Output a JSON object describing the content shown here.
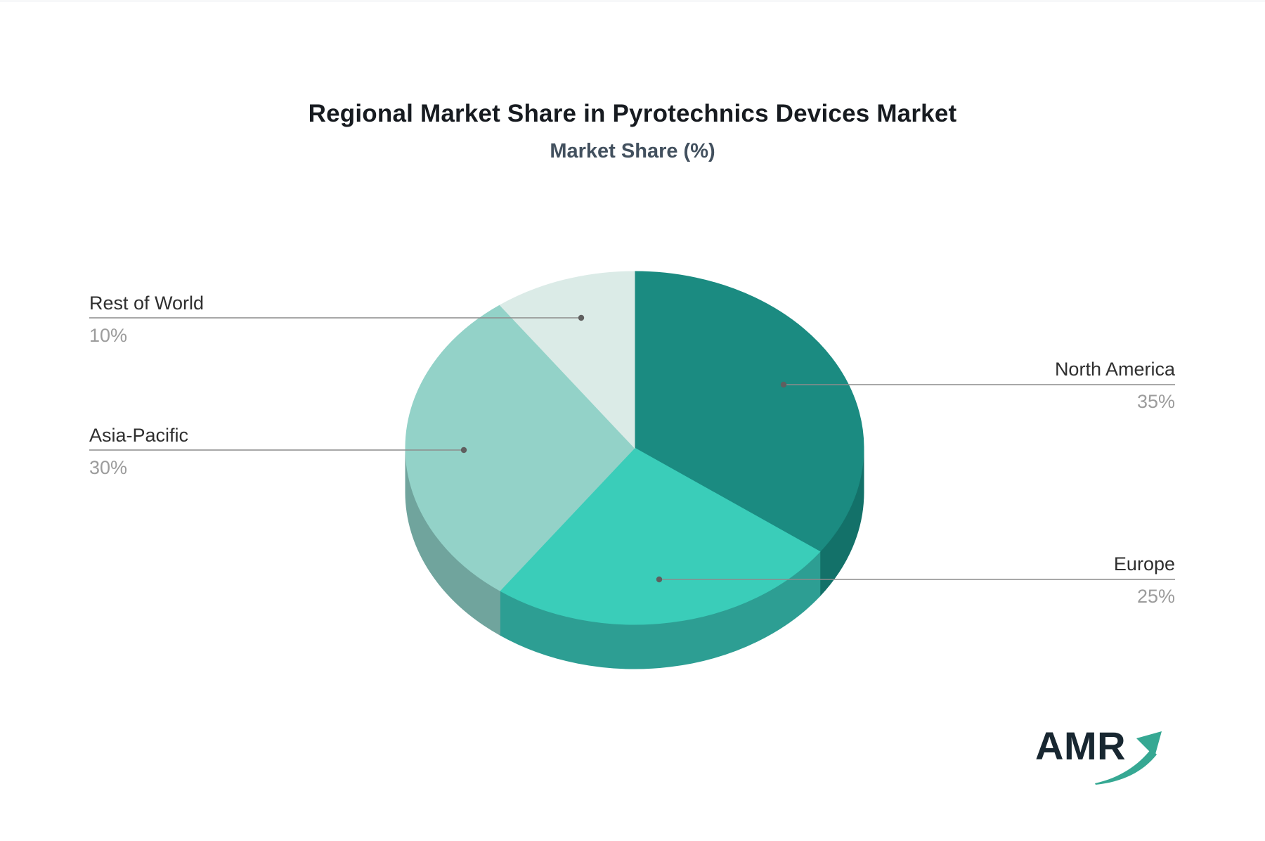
{
  "header": {
    "title": "Regional Market Share in Pyrotechnics Devices Market",
    "subtitle": "Market Share (%)",
    "title_color": "#171b20",
    "subtitle_color": "#42505e"
  },
  "chart_data": {
    "type": "pie",
    "style": "3d",
    "title": "Regional Market Share in Pyrotechnics Devices Market",
    "subtitle": "Market Share (%)",
    "unit": "%",
    "direction": "clockwise",
    "start_angle_deg": 0,
    "legend": "none",
    "labels": [
      "North America",
      "Europe",
      "Asia-Pacific",
      "Rest of World"
    ],
    "values": [
      35,
      25,
      30,
      10
    ],
    "value_labels": [
      "35%",
      "25%",
      "30%",
      "10%"
    ],
    "slice_colors": [
      "#1b8b81",
      "#3acdb9",
      "#93d2c8",
      "#dbebe7"
    ],
    "side_colors": [
      "#137169",
      "#2d9e93",
      "#70a49d",
      "#b9cfca"
    ],
    "label_text_color": "#2f2f2f",
    "value_text_color": "#9c9c9c",
    "leader_line_color": "#8c8c8c",
    "leader_dot_color": "#5f5f5f"
  },
  "logo": {
    "text": "AMR",
    "text_color": "#182731",
    "arrow_color": "#36a893"
  }
}
